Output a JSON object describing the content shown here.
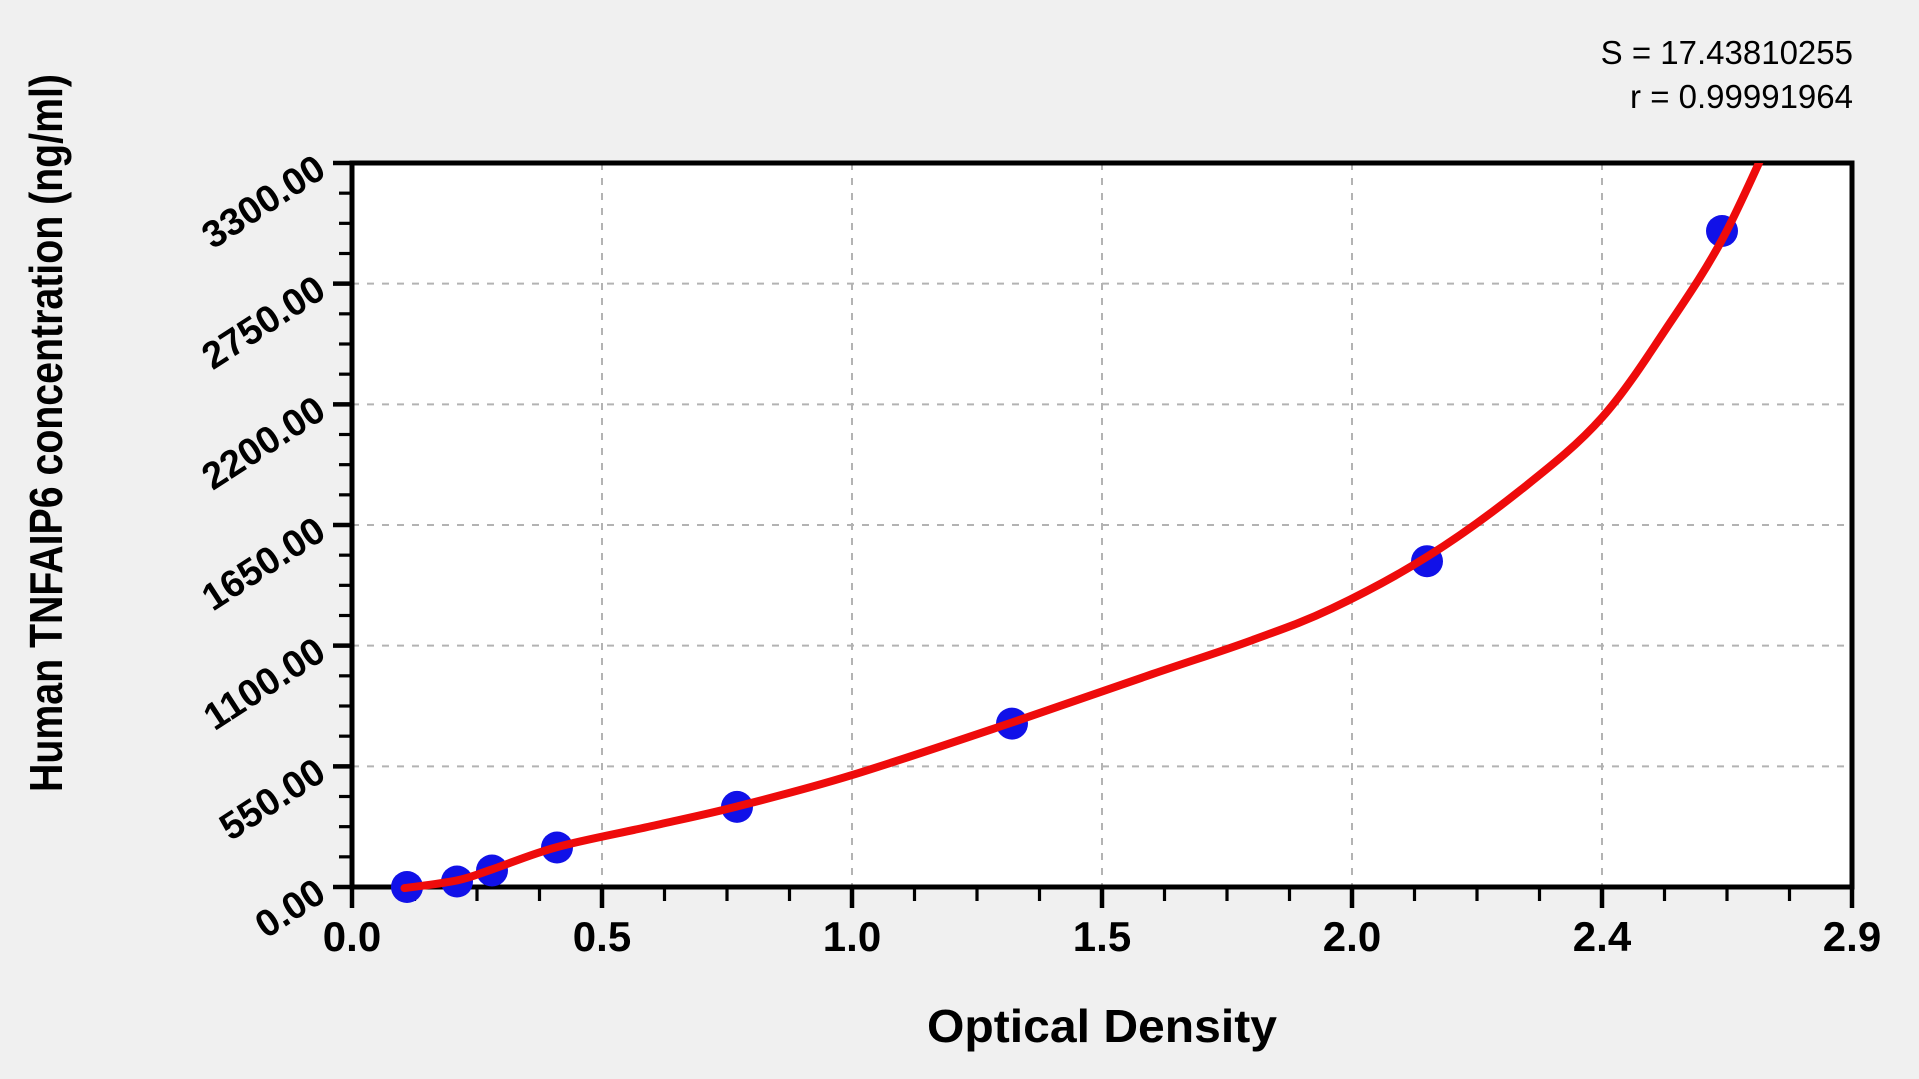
{
  "figure": {
    "background": "#f0f0f0",
    "plot_background": "#ffffff",
    "axis_color": "#000000",
    "grid_color": "#b3b3b3"
  },
  "annotation": {
    "s_label": "S = 17.43810255",
    "r_label": "r = 0.99991964"
  },
  "chart_data": {
    "type": "scatter",
    "title": "",
    "xlabel": "Optical Density",
    "ylabel": "Human TNFAIP6 concentration (ng/ml)",
    "xlim": [
      0,
      2.9
    ],
    "ylim": [
      0,
      3300
    ],
    "x_tick_values": [
      0,
      0.5,
      1.0,
      1.5,
      2.0,
      2.4,
      2.9
    ],
    "x_tick_labels": [
      "0.0",
      "0.5",
      "1.0",
      "1.5",
      "2.0",
      "2.4",
      "2.9"
    ],
    "y_tick_values": [
      0,
      550,
      1100,
      1650,
      2200,
      2750,
      3300
    ],
    "y_tick_labels": [
      "0.00",
      "550.00",
      "1100.00",
      "1650.00",
      "2200.00",
      "2750.00",
      "3300.00"
    ],
    "minor_divisions_per_major": 4,
    "grid": "dashed gray lines at interior major ticks, both axes",
    "legend_position": "none",
    "series": [
      {
        "name": "standard-points",
        "type": "scatter",
        "color": "#1111e8",
        "marker_radius_px": 16,
        "od": [
          0.11,
          0.21,
          0.28,
          0.41,
          0.77,
          1.32,
          2.12,
          2.64
        ],
        "concentration": [
          0,
          25,
          75,
          180,
          365,
          745,
          1485,
          2990
        ]
      },
      {
        "name": "fitted-curve",
        "type": "line",
        "color": "#ee0b0b",
        "stroke_width_px": 8,
        "od": [
          0.105,
          0.21,
          0.28,
          0.41,
          0.6,
          0.77,
          1.0,
          1.32,
          1.6,
          1.8,
          1.96,
          2.12,
          2.27,
          2.4,
          2.54,
          2.64,
          2.73
        ],
        "concentration": [
          -5,
          30,
          80,
          182,
          278,
          367,
          510,
          750,
          970,
          1125,
          1270,
          1505,
          1810,
          2140,
          2585,
          2950,
          3380
        ]
      }
    ]
  }
}
